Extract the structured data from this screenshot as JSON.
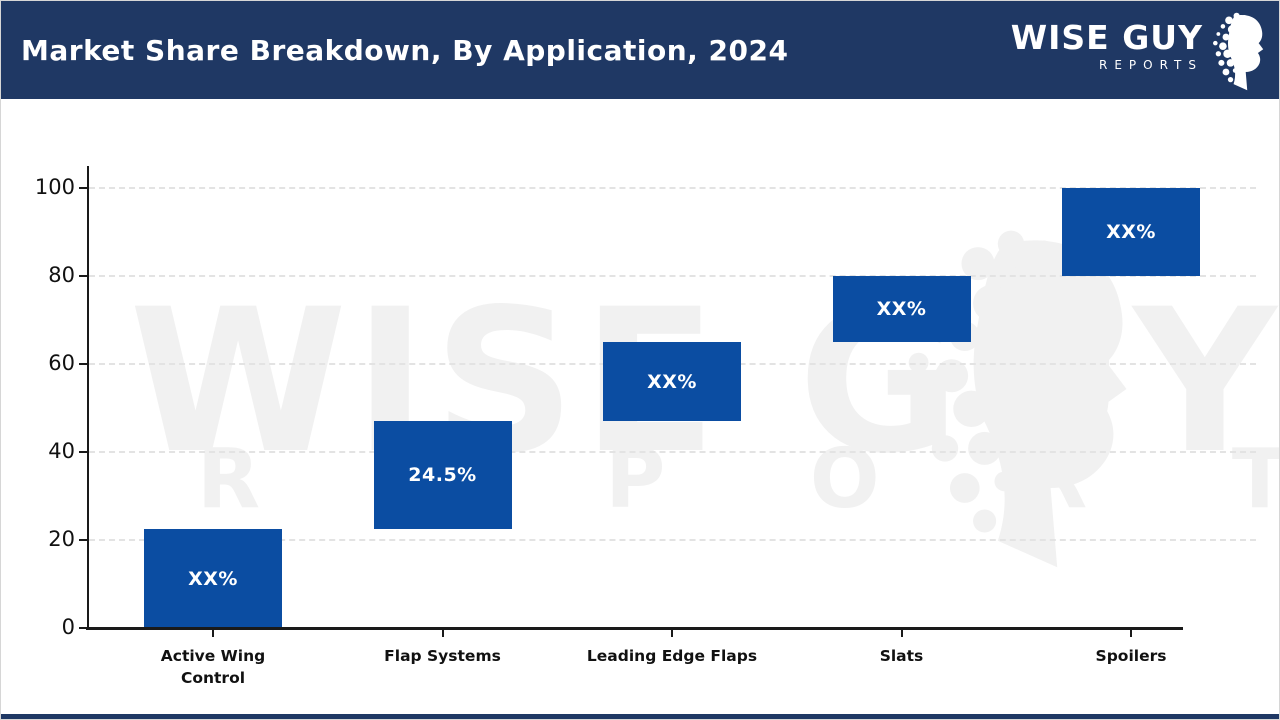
{
  "header": {
    "title": "Market Share Breakdown, By Application, 2024",
    "background_color": "#1f3864",
    "logo": {
      "line1": "WISE GUY",
      "line2": "REPORTS"
    }
  },
  "watermark": {
    "line1": "WISE GUY",
    "line2": "R E P O R T S"
  },
  "chart_data": {
    "type": "bar",
    "subtype": "waterfall",
    "title": "Market Share Breakdown, By Application, 2024",
    "categories": [
      "Active Wing\nControl",
      "Flap Systems",
      "Leading Edge Flaps",
      "Slats",
      "Spoilers"
    ],
    "bar_starts": [
      0,
      22.5,
      47,
      65,
      80
    ],
    "bar_ends": [
      22.5,
      47,
      65,
      80,
      100
    ],
    "bar_labels": [
      "XX%",
      "24.5%",
      "XX%",
      "XX%",
      "XX%"
    ],
    "xlabel": "",
    "ylabel": "",
    "ylim": [
      0,
      100
    ],
    "yticks": [
      0,
      20,
      40,
      60,
      80,
      100
    ],
    "grid": "horizontal-dashed",
    "legend": "none",
    "bar_color": "#0b4da2",
    "bar_label_color": "#ffffff"
  }
}
